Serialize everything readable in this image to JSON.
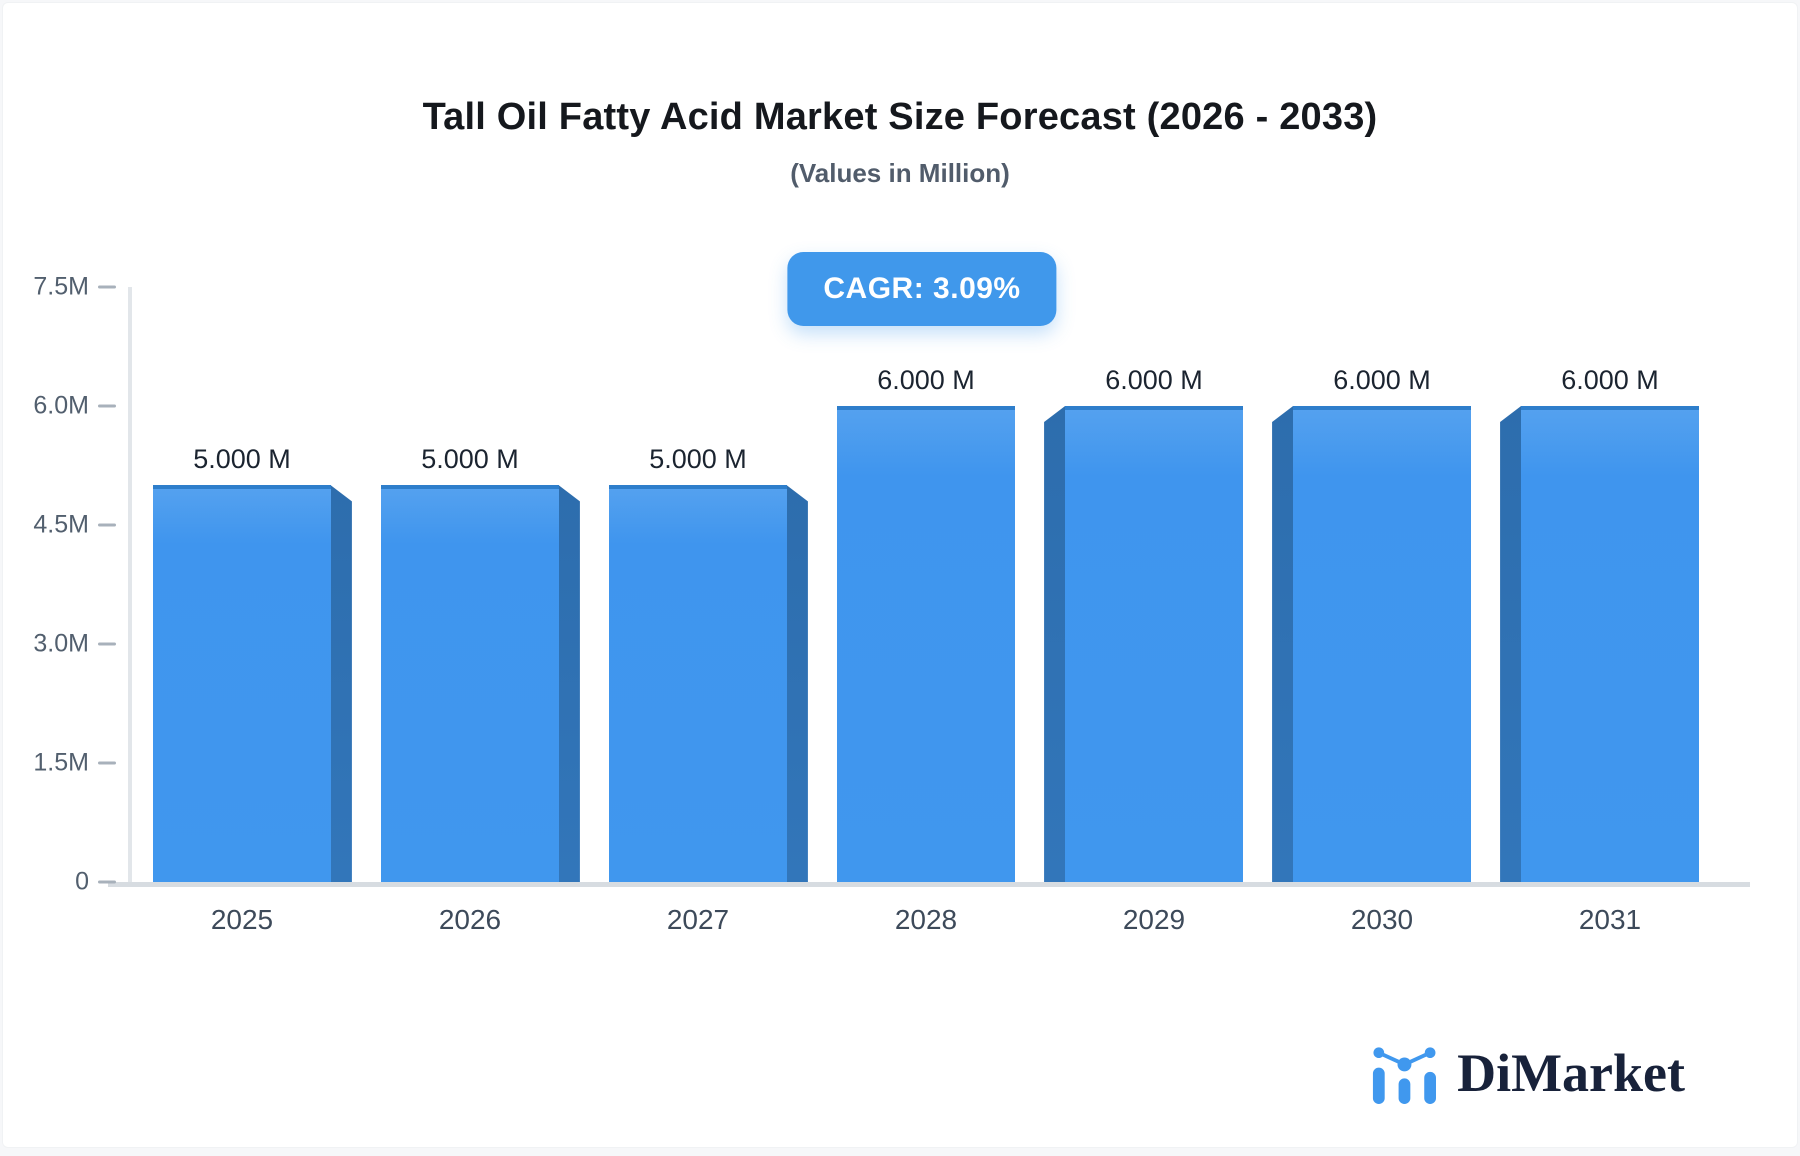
{
  "title": "Tall Oil Fatty Acid Market Size Forecast (2026 - 2033)",
  "subtitle": "(Values in Million)",
  "badge": {
    "text": "CAGR: 3.09%",
    "bg_color": "#4098eb",
    "text_color": "#ffffff"
  },
  "chart_data": {
    "type": "bar",
    "categories": [
      "2025",
      "2026",
      "2027",
      "2028",
      "2029",
      "2030",
      "2031"
    ],
    "values": [
      5.0,
      5.0,
      5.0,
      6.0,
      6.0,
      6.0,
      6.0
    ],
    "bar_labels": [
      "5.000 M",
      "5.000 M",
      "5.000 M",
      "6.000 M",
      "6.000 M",
      "6.000 M",
      "6.000 M"
    ],
    "ylim": [
      0,
      7.5
    ],
    "yticks": [
      {
        "value": 0,
        "label": "0"
      },
      {
        "value": 1.5,
        "label": "1.5M"
      },
      {
        "value": 3.0,
        "label": "3.0M"
      },
      {
        "value": 4.5,
        "label": "4.5M"
      },
      {
        "value": 6.0,
        "label": "6.0M"
      },
      {
        "value": 7.5,
        "label": "7.5M"
      }
    ],
    "grid": "off",
    "legend": "none",
    "bar_face_color": "#4097ee",
    "bar_side_color": "#3074b7",
    "side_faces": [
      "right",
      "right",
      "right",
      "none",
      "left",
      "left",
      "left"
    ]
  },
  "branding": {
    "logo_text": "DiMarket",
    "logo_icon": "mini-bar-line-chart",
    "logo_accent_color": "#4098ee",
    "logo_text_color": "#18223a"
  }
}
